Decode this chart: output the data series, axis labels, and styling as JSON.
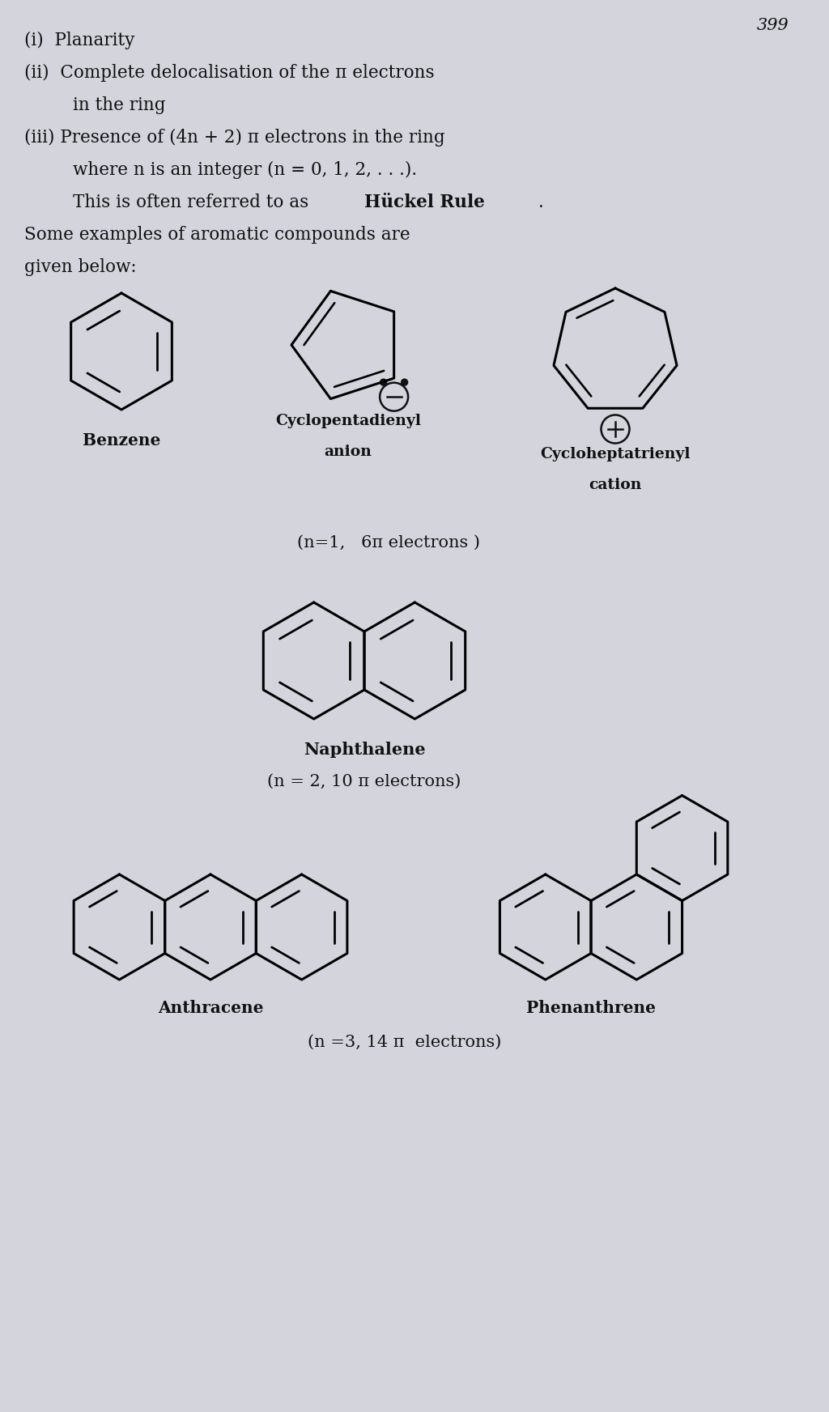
{
  "bg_color": "#d4d4dc",
  "text_color": "#111111",
  "page_number": "399",
  "benzene_label": "Benzene",
  "cpd_label1": "Cyclopentadienyl",
  "cpd_label2": "anion",
  "chc_label1": "Cycloheptatrienyl",
  "chc_label2": "cation",
  "n1_label": "(n=1,   6π electrons )",
  "naph_label": "Naphthalene",
  "naph_n": "(n = 2, 10 π electrons)",
  "anth_label": "Anthracene",
  "phen_label": "Phenanthrene",
  "bottom_n": "(n =3, 14 π  electrons)"
}
